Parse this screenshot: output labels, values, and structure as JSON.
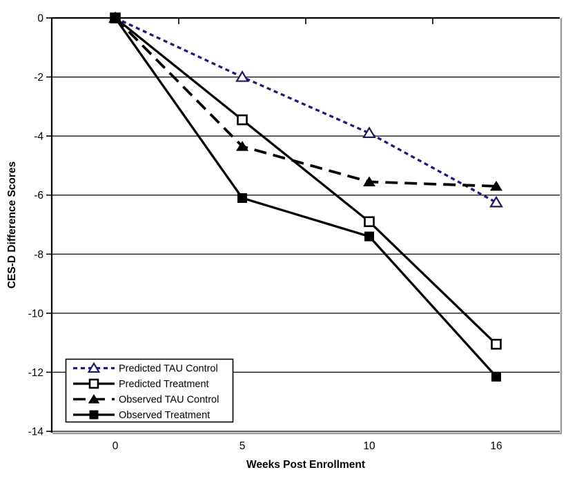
{
  "figure_background": "#ffffff",
  "chart_data": {
    "type": "line",
    "title": "",
    "xlabel": "Weeks Post Enrollment",
    "ylabel": "CES-D Difference Scores",
    "x": [
      0,
      5,
      10,
      16
    ],
    "xticklabels": [
      "0",
      "5",
      "10",
      "16"
    ],
    "yticks": [
      0,
      -2,
      -4,
      -6,
      -8,
      -10,
      -12,
      -14
    ],
    "ylim": [
      -14,
      0
    ],
    "grid": true,
    "grid_color": "#000000",
    "plot_border_shadow_color": "#9a9a9a",
    "legend_position": "lower-left",
    "legend_border": true,
    "series": [
      {
        "name": "Predicted TAU Control",
        "values": [
          0,
          -2.0,
          -3.9,
          -6.25
        ],
        "color": "#1b1b78",
        "marker_stroke": "#1b1b5e",
        "line_style": "dotted",
        "marker": "open-triangle"
      },
      {
        "name": "Predicted Treatment",
        "values": [
          0,
          -3.45,
          -6.9,
          -11.05
        ],
        "color": "#000000",
        "marker_stroke": "#000000",
        "line_style": "solid",
        "marker": "open-square"
      },
      {
        "name": "Observed TAU Control",
        "values": [
          0,
          -4.35,
          -5.55,
          -5.7
        ],
        "color": "#000000",
        "marker_stroke": "#000000",
        "line_style": "dashed",
        "marker": "filled-triangle"
      },
      {
        "name": "Observed Treatment",
        "values": [
          0,
          -6.1,
          -7.4,
          -12.15
        ],
        "color": "#000000",
        "marker_stroke": "#000000",
        "line_style": "solid",
        "marker": "filled-square"
      }
    ]
  }
}
